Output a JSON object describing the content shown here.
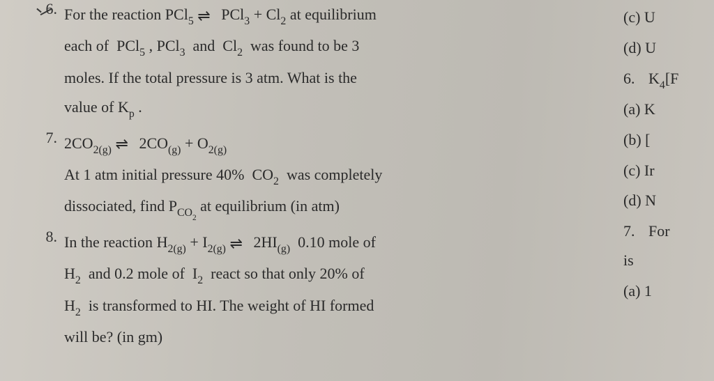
{
  "background_color": "#c5c2bd",
  "text_color": "#2a2a2a",
  "font_family": "Georgia, serif",
  "font_size_pt": 16,
  "line_height": 1.95,
  "left_column": {
    "questions": [
      {
        "number": "6.",
        "lines": [
          "For the reaction PCl₅ ⇌ PCl₃ + Cl₂ at equilibrium",
          "each of  PCl₅ , PCl₃  and  Cl₂  was found to be 3",
          "moles. If the total pressure is 3 atm. What is the",
          "value of Kₚ ."
        ],
        "has_checkmark": true
      },
      {
        "number": "7.",
        "lines": [
          "2CO₂(g) ⇌ 2CO(g) + O₂(g)",
          "At 1 atm initial pressure 40%  CO₂  was completely",
          "dissociated, find P_CO₂ at equilibrium (in atm)"
        ]
      },
      {
        "number": "8.",
        "lines": [
          "In the reaction H₂(g) + I₂(g) ⇌ 2HI(g)  0.10 mole of",
          "H₂  and 0.2 mole of  I₂  react so that only 20% of",
          "H₂  is transformed to HI. The weight of HI formed",
          "will be? (in gm)"
        ]
      }
    ]
  },
  "right_column": {
    "items": [
      {
        "type": "option",
        "text": "(c) U"
      },
      {
        "type": "option",
        "text": "(d) U"
      },
      {
        "type": "question",
        "number": "6.",
        "text": "K₄[F"
      },
      {
        "type": "option",
        "text": "(a) K"
      },
      {
        "type": "option",
        "text": "(b) ["
      },
      {
        "type": "option",
        "text": "(c) Ir"
      },
      {
        "type": "option",
        "text": "(d) N"
      },
      {
        "type": "question",
        "number": "7.",
        "text": "For"
      },
      {
        "type": "plain",
        "text": "is"
      },
      {
        "type": "option",
        "text": "(a) 1"
      }
    ]
  }
}
